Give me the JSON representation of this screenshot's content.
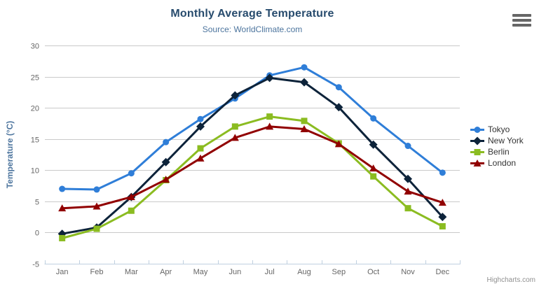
{
  "credit": {
    "label": "Highcharts.com"
  },
  "export_menu": {
    "icon": "hamburger-menu-icon"
  },
  "colors": {
    "title_text": "#274b6d",
    "subtitle_text": "#4d759e",
    "axis_title": "#4d759e",
    "axis_label": "#666666",
    "gridline": "#c9c9c9",
    "axis_line": "#c0d0e0",
    "tick": "#c0d0e0",
    "legend_text": "#333333",
    "credit_text": "#909090",
    "menu_icon": "#666666",
    "background": "#ffffff"
  },
  "chart_data": {
    "type": "line",
    "title": "Monthly Average Temperature",
    "subtitle": "Source: WorldClimate.com",
    "xlabel": "",
    "ylabel": "Temperature (°C)",
    "ylim": [
      -5,
      30
    ],
    "yticks": [
      -5,
      0,
      5,
      10,
      15,
      20,
      25,
      30
    ],
    "grid": "horizontal gridlines on",
    "legend_position": "right",
    "categories": [
      "Jan",
      "Feb",
      "Mar",
      "Apr",
      "May",
      "Jun",
      "Jul",
      "Aug",
      "Sep",
      "Oct",
      "Nov",
      "Dec"
    ],
    "series": [
      {
        "name": "Tokyo",
        "color": "#2f7ed8",
        "marker": "circle",
        "values": [
          7.0,
          6.9,
          9.5,
          14.5,
          18.2,
          21.5,
          25.2,
          26.5,
          23.3,
          18.3,
          13.9,
          9.6
        ]
      },
      {
        "name": "New York",
        "color": "#0d233a",
        "marker": "diamond",
        "values": [
          -0.2,
          0.8,
          5.7,
          11.3,
          17.0,
          22.0,
          24.8,
          24.1,
          20.1,
          14.1,
          8.6,
          2.5
        ]
      },
      {
        "name": "Berlin",
        "color": "#8bbc21",
        "marker": "square",
        "values": [
          -0.9,
          0.6,
          3.5,
          8.4,
          13.5,
          17.0,
          18.6,
          17.9,
          14.3,
          9.0,
          3.9,
          1.0
        ]
      },
      {
        "name": "London",
        "color": "#910000",
        "marker": "triangle",
        "values": [
          3.9,
          4.2,
          5.7,
          8.5,
          11.9,
          15.2,
          17.0,
          16.6,
          14.2,
          10.3,
          6.6,
          4.8
        ]
      }
    ]
  }
}
